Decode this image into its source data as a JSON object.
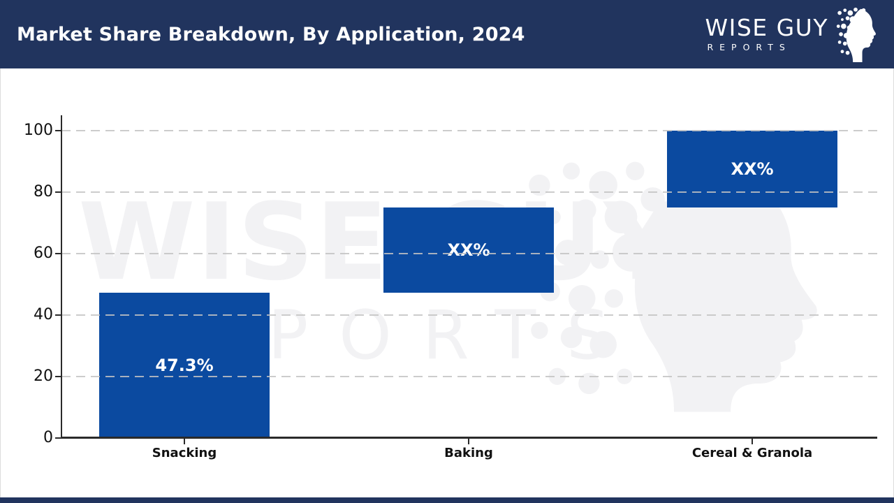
{
  "header": {
    "title": "Market Share Breakdown, By Application, 2024",
    "logo": {
      "wordmark": "WISE GUY",
      "subtext": "REPORTS"
    }
  },
  "watermark": {
    "wordmark": "WISE GUY",
    "subtext": "REPORTS"
  },
  "chart_data": {
    "type": "bar",
    "subtype": "floating-waterfall",
    "title": "Market Share Breakdown, By Application, 2024",
    "categories": [
      "Snacking",
      "Baking",
      "Cereal & Granola"
    ],
    "segments": [
      {
        "category": "Snacking",
        "start": 0,
        "end": 47.3,
        "label": "47.3%"
      },
      {
        "category": "Baking",
        "start": 47.3,
        "end": 75,
        "label": "XX%"
      },
      {
        "category": "Cereal & Granola",
        "start": 75,
        "end": 100,
        "label": "XX%"
      }
    ],
    "ylim": [
      0,
      100
    ],
    "yticks": [
      0,
      20,
      40,
      60,
      80,
      100
    ],
    "xlabel": "",
    "ylabel": "",
    "grid": {
      "horizontal": true,
      "style": "dashed"
    },
    "legend": "none",
    "bar_color": "#0b4aa0",
    "value_label_color": "#ffffff"
  },
  "colors": {
    "header_bg": "#21345e",
    "footer_bg": "#21345e",
    "bar": "#0b4aa0",
    "axis": "#2a2a2a",
    "gridline": "#c9c9c9",
    "watermark": "#f2f2f4",
    "tick_label": "#111111"
  }
}
